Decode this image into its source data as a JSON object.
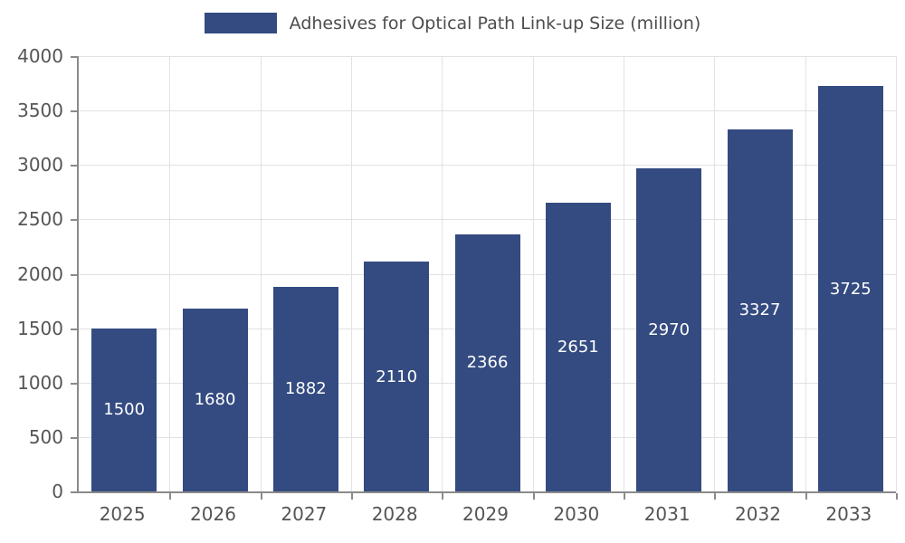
{
  "legend": {
    "title": "Adhesives for Optical Path Link-up Size (million)",
    "swatch_color": "#344B81"
  },
  "chart_data": {
    "type": "bar",
    "title": "Adhesives for Optical Path Link-up Size (million)",
    "categories": [
      "2025",
      "2026",
      "2027",
      "2028",
      "2029",
      "2030",
      "2031",
      "2032",
      "2033"
    ],
    "values": [
      1500,
      1680,
      1882,
      2110,
      2366,
      2651,
      2970,
      3327,
      3725
    ],
    "xlabel": "",
    "ylabel": "",
    "ylim": [
      0,
      4000
    ],
    "ytick_step": 500,
    "yticks": [
      0,
      500,
      1000,
      1500,
      2000,
      2500,
      3000,
      3500,
      4000
    ],
    "grid": true,
    "legend_position": "top",
    "bar_color": "#344B81",
    "value_label_color": "#ffffff",
    "axis_color": "#8a8a8a",
    "grid_color": "#e2e2e2",
    "tick_label_color": "#555555"
  }
}
